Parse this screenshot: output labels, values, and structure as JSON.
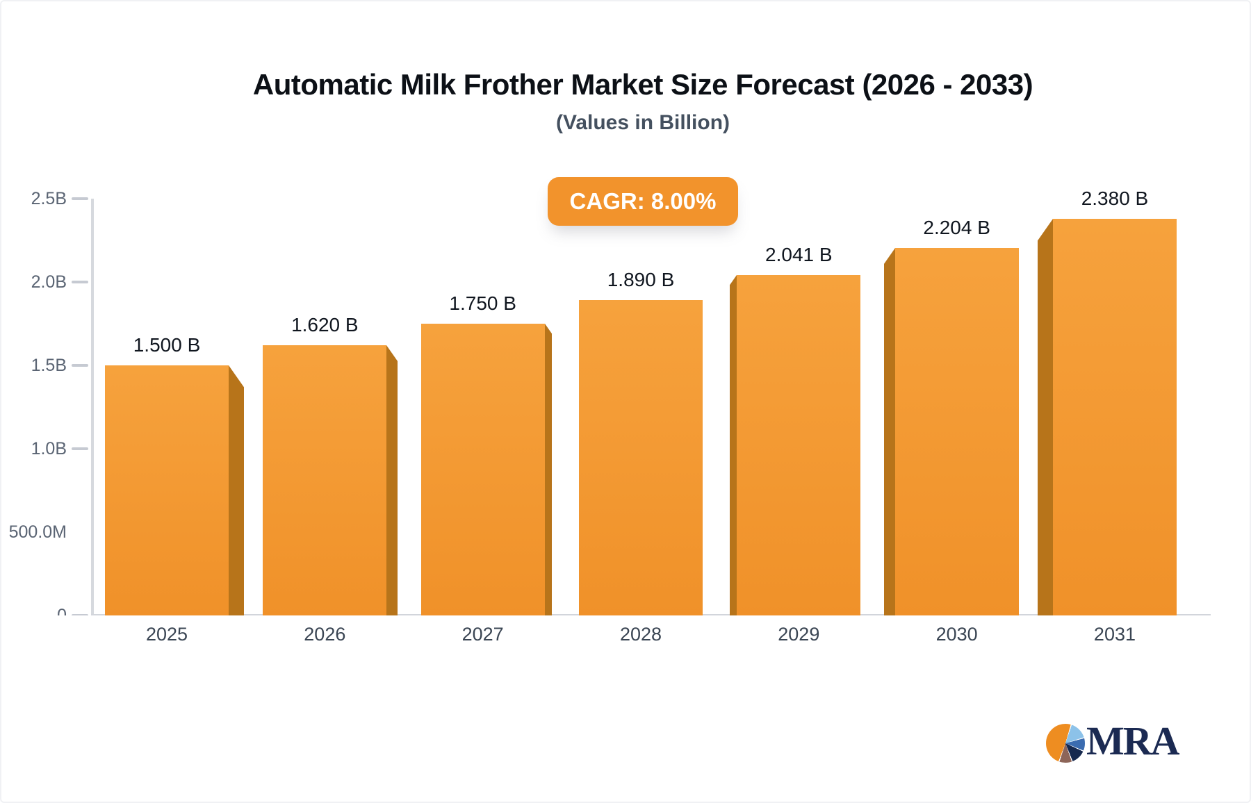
{
  "title": "Automatic Milk Frother Market Size Forecast (2026 - 2033)",
  "subtitle": "(Values in Billion)",
  "badge": {
    "label": "CAGR: 8.00%",
    "bg_color": "#F2932C"
  },
  "logo": {
    "text": "MRA",
    "icon": "pie-chart-icon"
  },
  "colors": {
    "bar_top": "#F6A23D",
    "bar_bottom": "#F09129",
    "bar_side": "#B7741A",
    "axis_line": "#d6d9de",
    "accent_orange": "#F2932C",
    "logo_navy": "#1b2a52"
  },
  "chart_data": {
    "type": "bar",
    "title": "Automatic Milk Frother Market Size Forecast (2026 - 2033)",
    "subtitle": "(Values in Billion)",
    "annotation": "CAGR: 8.00%",
    "categories": [
      "2025",
      "2026",
      "2027",
      "2028",
      "2029",
      "2030",
      "2031"
    ],
    "values": [
      1.5,
      1.62,
      1.75,
      1.89,
      2.041,
      2.204,
      2.38
    ],
    "value_labels": [
      "1.500 B",
      "1.620 B",
      "1.750 B",
      "1.890 B",
      "2.041 B",
      "2.204 B",
      "2.380 B"
    ],
    "unit": "Billion",
    "ylim": [
      0,
      2.5
    ],
    "y_ticks": [
      {
        "label": "2.5B",
        "value": 2.5,
        "dash": true
      },
      {
        "label": "2.0B",
        "value": 2.0,
        "dash": true
      },
      {
        "label": "1.5B",
        "value": 1.5,
        "dash": true
      },
      {
        "label": "1.0B",
        "value": 1.0,
        "dash": true
      },
      {
        "label": "500.0M",
        "value": 0.5,
        "dash": false
      },
      {
        "label": "0",
        "value": 0.0,
        "dash": true
      }
    ],
    "grid": false,
    "legend": false,
    "xlabel": "",
    "ylabel": ""
  }
}
